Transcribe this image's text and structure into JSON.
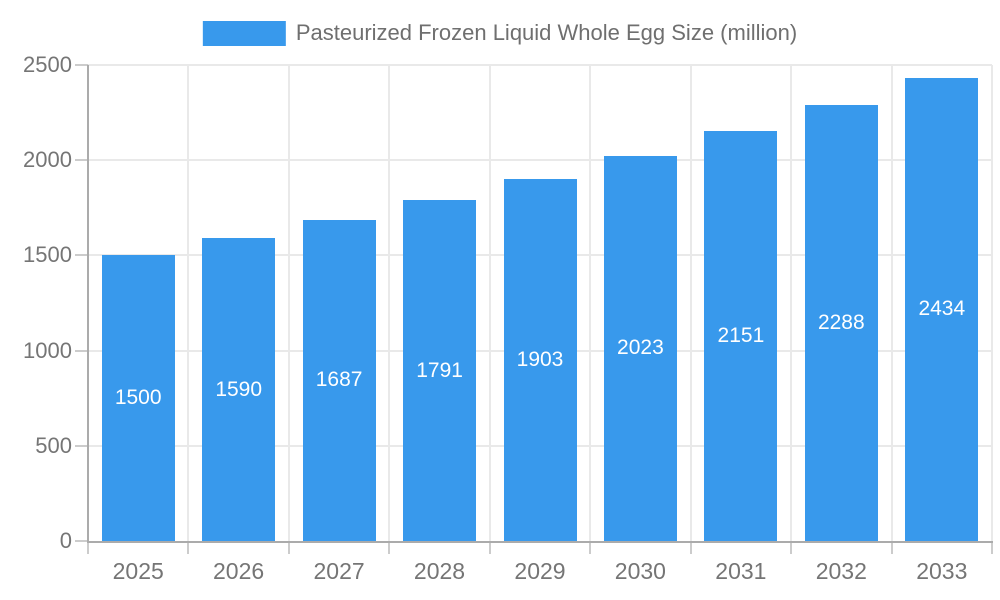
{
  "legend": {
    "label": "Pasteurized Frozen Liquid Whole Egg Size (million)"
  },
  "colors": {
    "bar": "#3899EC",
    "bar_label": "#FFFFFF",
    "axis_text": "#757575",
    "legend_text": "#6F6F6F",
    "grid": "#E9E9E9",
    "tick": "#CCCCCC",
    "axis_line": "#ABABAB",
    "background": "#FFFFFF"
  },
  "chart_data": {
    "type": "bar",
    "title": "Pasteurized Frozen Liquid Whole Egg Size (million)",
    "categories": [
      "2025",
      "2026",
      "2027",
      "2028",
      "2029",
      "2030",
      "2031",
      "2032",
      "2033"
    ],
    "values": [
      1500,
      1590,
      1687,
      1791,
      1903,
      2023,
      2151,
      2288,
      2434
    ],
    "xlabel": "",
    "ylabel": "",
    "ylim": [
      0,
      2500
    ],
    "yticks": [
      0,
      500,
      1000,
      1500,
      2000,
      2500
    ],
    "grid": true,
    "legend_position": "top",
    "bar_value_labels": "inside-center"
  }
}
